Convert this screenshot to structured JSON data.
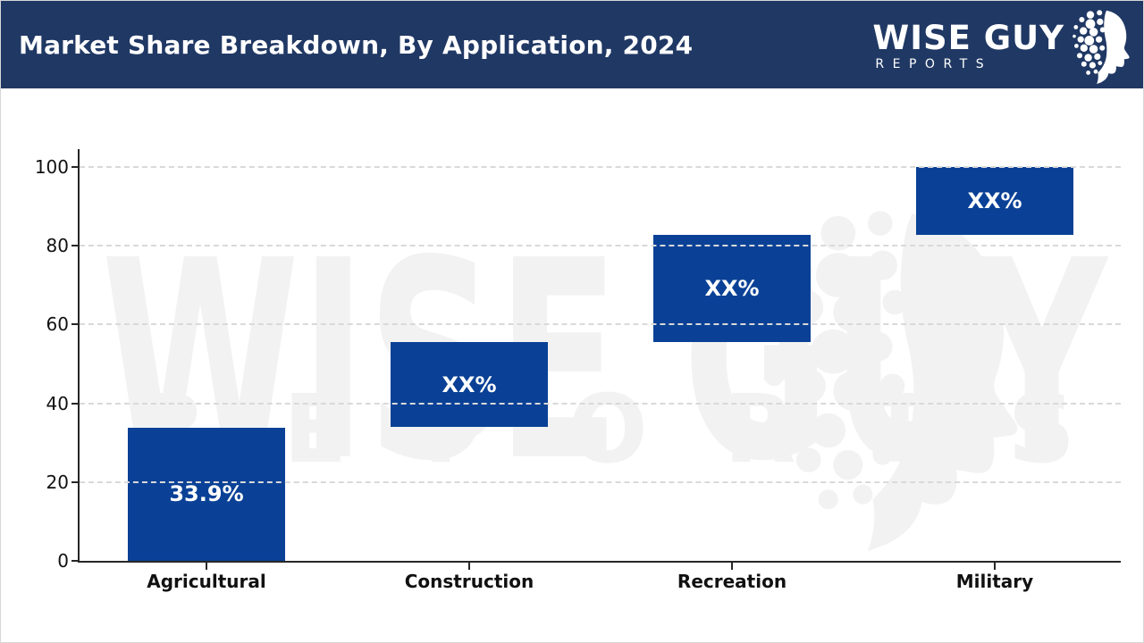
{
  "header": {
    "title": "Market Share Breakdown, By Application, 2024",
    "logo": {
      "line1": "WISE GUY",
      "line2": "REPORTS"
    }
  },
  "watermark": {
    "line1": "WISE GUY",
    "line2": "REPORTS"
  },
  "colors": {
    "header_bg": "#203864",
    "header_text": "#ffffff",
    "bar": "#0a4196",
    "bar_label": "#ffffff",
    "axis": "#262626",
    "tick_text": "#111111",
    "gridline": "#d9d9d9",
    "watermark": "#f2f2f2"
  },
  "chart_data": {
    "type": "bar",
    "subtype": "stepped-waterfall",
    "title": "Market Share Breakdown, By Application, 2024",
    "categories": [
      "Agricultural",
      "Construction",
      "Recreation",
      "Military"
    ],
    "segments": [
      {
        "category": "Agricultural",
        "start": 0,
        "end": 33.9,
        "value_label": "33.9%"
      },
      {
        "category": "Construction",
        "start": 33.9,
        "end": 55.5,
        "value_label": "XX%"
      },
      {
        "category": "Recreation",
        "start": 55.5,
        "end": 82.7,
        "value_label": "XX%"
      },
      {
        "category": "Military",
        "start": 82.7,
        "end": 100,
        "value_label": "XX%"
      }
    ],
    "yticks": [
      0,
      20,
      40,
      60,
      80,
      100
    ],
    "ylim": [
      0,
      104
    ],
    "xlabel": "",
    "ylabel": "",
    "grid": "horizontal-dashed",
    "legend": "none"
  }
}
